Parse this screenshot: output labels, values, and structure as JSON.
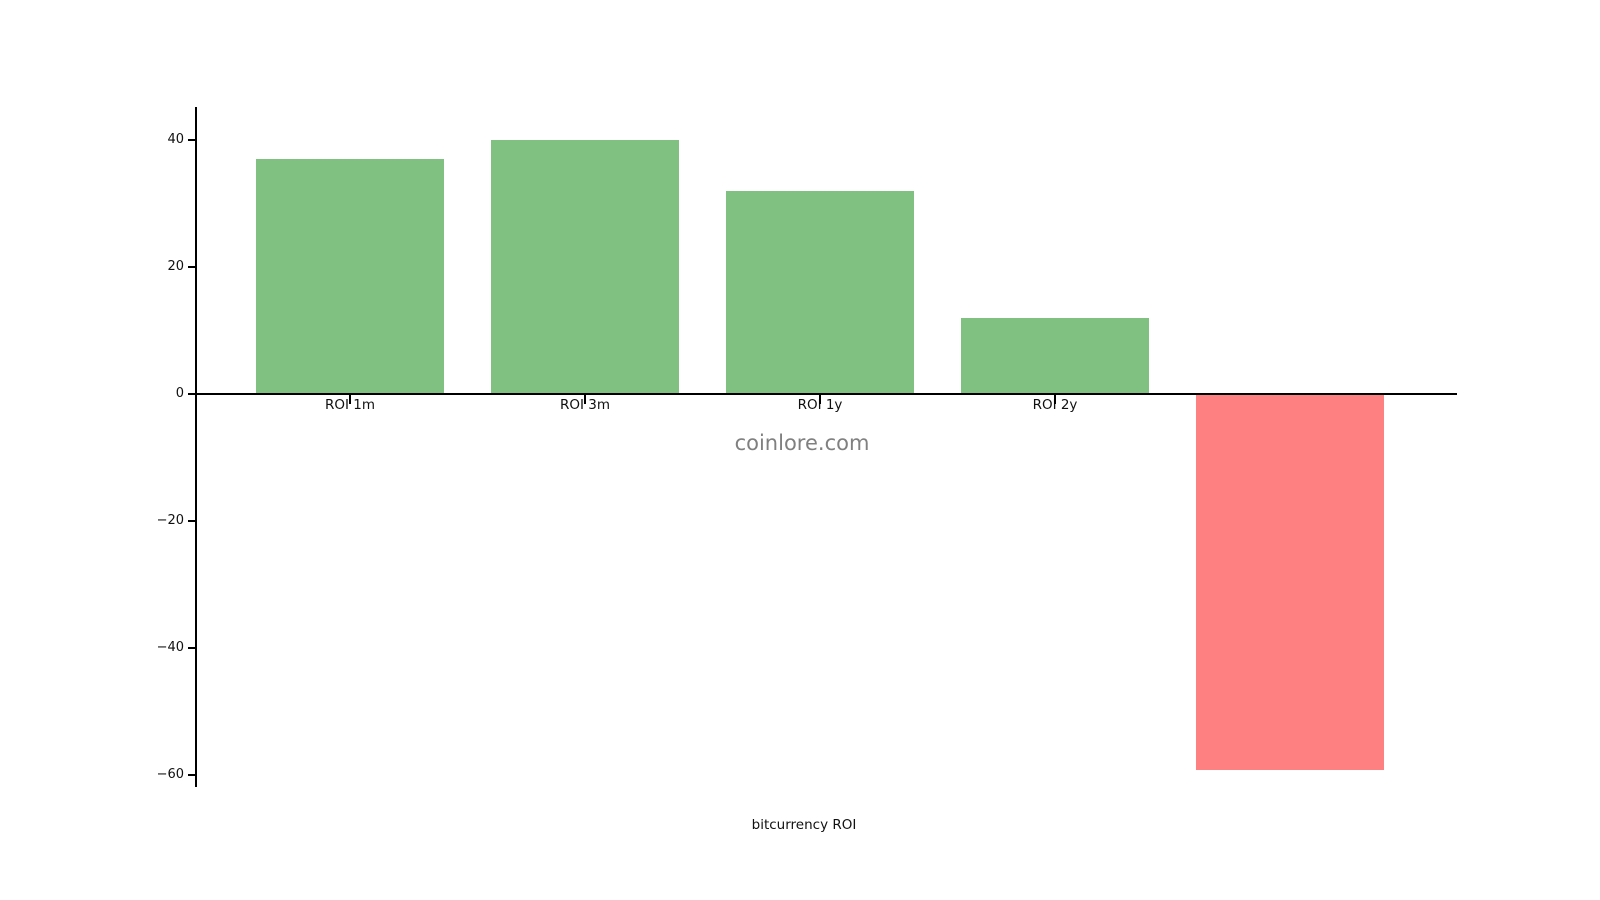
{
  "watermark": {
    "text": "coinlore.com",
    "color": "#808080"
  },
  "chart_data": {
    "type": "bar",
    "title": "bitcurrency ROI",
    "title_position": "bottom-center",
    "categories": [
      "ROI 1m",
      "ROI 3m",
      "ROI 1y",
      "ROI 2y",
      ""
    ],
    "values": [
      37,
      40,
      32,
      12,
      -59
    ],
    "bar_colors": [
      "#80c080",
      "#80c080",
      "#80c080",
      "#80c080",
      "#ff8080"
    ],
    "positive_color": "#80c080",
    "negative_color": "#ff8080",
    "xlabel": "",
    "ylabel": "",
    "yticks": [
      40,
      20,
      0,
      -20,
      -40,
      -60
    ],
    "ytick_labels": [
      "40",
      "20",
      "0",
      "−20",
      "−40",
      "−60"
    ],
    "ylim": [
      -62,
      45
    ],
    "grid": false,
    "legend_position": "none",
    "axis_color": "#000000",
    "text_color": "#111111"
  }
}
